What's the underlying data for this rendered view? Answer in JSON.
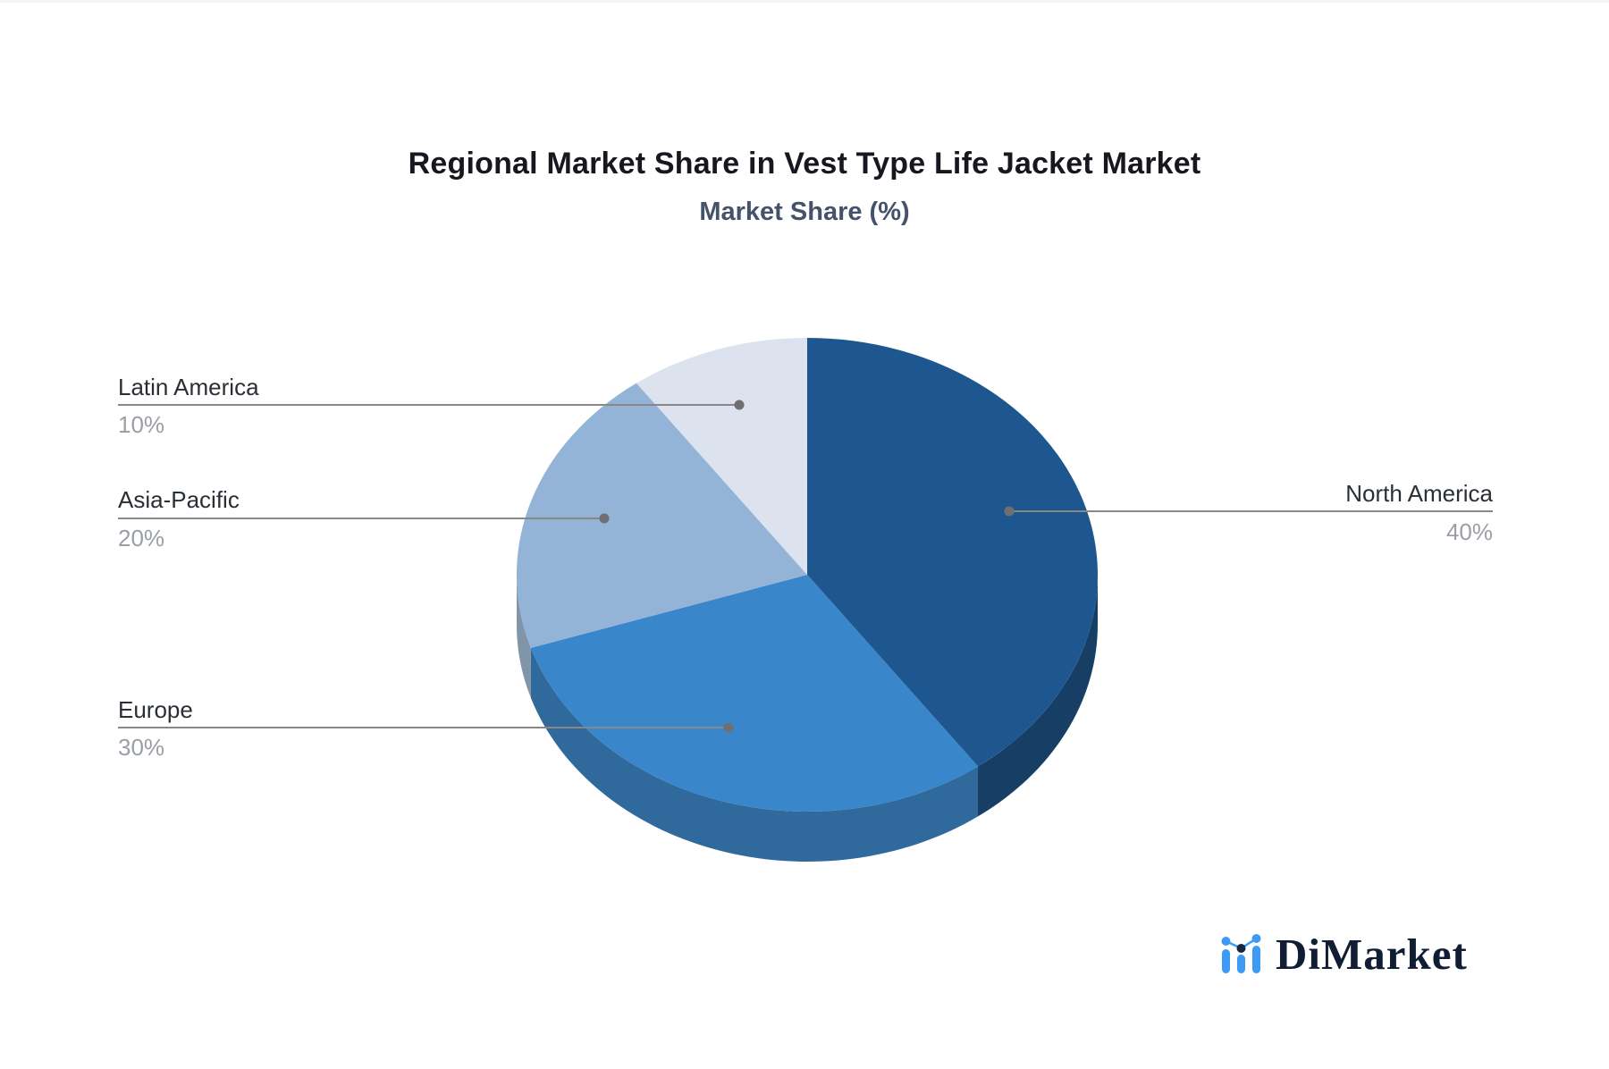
{
  "header": {
    "title": "Regional Market Share in Vest Type Life Jacket Market",
    "subtitle": "Market Share (%)"
  },
  "chart_data": {
    "type": "pie",
    "style": "3d",
    "title": "Regional Market Share in Vest Type Life Jacket Market",
    "subtitle": "Market Share (%)",
    "unit": "percent",
    "rotation": "clockwise-from-12-oclock",
    "legend_position": "callout-labels",
    "slices": [
      {
        "label": "North America",
        "value": 40,
        "display": "40%",
        "color": "#1E578F",
        "side_color": "#173F66"
      },
      {
        "label": "Europe",
        "value": 30,
        "display": "30%",
        "color": "#3A86CB",
        "side_color": "#30699C"
      },
      {
        "label": "Asia-Pacific",
        "value": 20,
        "display": "20%",
        "color": "#93B3D7",
        "side_color": "#8094AA"
      },
      {
        "label": "Latin America",
        "value": 10,
        "display": "10%",
        "color": "#DDE3EE",
        "side_color": "#C9D2E2"
      }
    ]
  },
  "callouts": {
    "line_color": "#888888",
    "dot_color": "#6f6f6f"
  },
  "logo": {
    "text": "DiMarket",
    "icon": "bar-chart-logo-icon",
    "text_color": "#101d33",
    "icon_bar_color": "#3d9bf5",
    "icon_dot_accent_color": "#172742"
  }
}
